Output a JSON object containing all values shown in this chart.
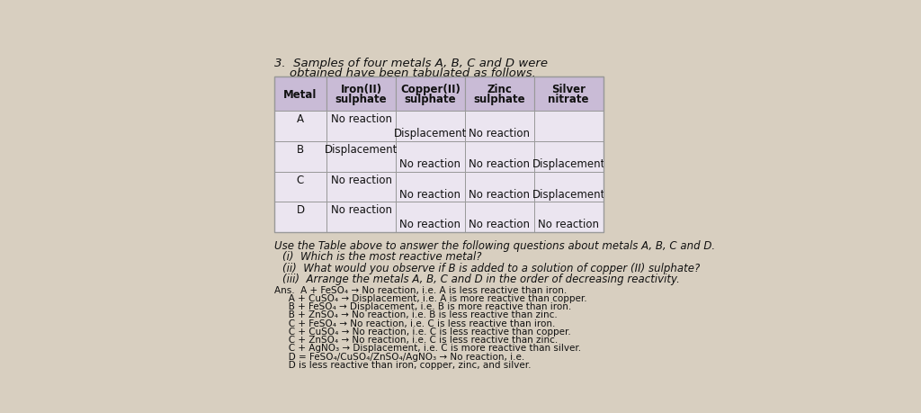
{
  "title_line1": "3.  Samples of four metals A, B, C and D were",
  "title_line2": "    obtained have been tabulated as follows.",
  "col_headers": [
    [
      "Metal",
      ""
    ],
    [
      "Iron(II)",
      "sulphate"
    ],
    [
      "Copper(II)",
      "sulphate"
    ],
    [
      "Zinc",
      "sulphate"
    ],
    [
      "Silver",
      "nitrate"
    ]
  ],
  "rows": [
    {
      "metal": "A",
      "iron": "No reaction",
      "copper": "Displacement",
      "zinc": "No reaction",
      "silver": ""
    },
    {
      "metal": "B",
      "iron": "Displacement",
      "copper": "No reaction",
      "zinc": "No reaction",
      "silver": "Displacement"
    },
    {
      "metal": "C",
      "iron": "No reaction",
      "copper": "No reaction",
      "zinc": "No reaction",
      "silver": "Displacement"
    },
    {
      "metal": "D",
      "iron": "No reaction",
      "copper": "No reaction",
      "zinc": "No reaction",
      "silver": "No reaction"
    }
  ],
  "header_bg": "#c9bbd6",
  "data_bg": "#ebe5f0",
  "metal_header_bg": "#c9bbd6",
  "border_color": "#999999",
  "text_color": "#111111",
  "bg_color": "#d8cfc0",
  "title_fontsize": 9.5,
  "cell_fontsize": 8.5,
  "header_fontsize": 8.5,
  "questions": [
    "Use the Table above to answer the following questions about metals A, B, C and D.",
    "(i)  Which is the most reactive metal?",
    "(ii)  What would you observe if B is added to a solution of copper (II) sulphate?",
    "(iii)  Arrange the metals A, B, C and D in the order of decreasing reactivity."
  ],
  "answers": [
    "Ans.  A + FeSO₄ → No reaction, i.e. A is less reactive than iron.",
    "   A + CuSO₄ → Displacement, i.e. A is more reactive than copper.",
    "   B + FeSO₄ → Displacement, i.e. B is more reactive than iron.",
    "   B + ZnSO₄ → No reaction, i.e. B is less reactive than zinc.",
    "   C + FeSO₄ → No reaction, i.e. C is less reactive than iron.",
    "   C + CuSO₄ → No reaction, i.e. C is less reactive than copper.",
    "   C + ZnSO₄ → No reaction, i.e. C is less reactive than zinc.",
    "   C + AgNO₃ → Displacement, i.e. C is more reactive than silver.",
    "   D = FeSO₄/CuSO₄/ZnSO₄/AgNO₃ → No reaction, i.e.",
    "   D is less reactive than iron, copper, zinc, and silver."
  ]
}
